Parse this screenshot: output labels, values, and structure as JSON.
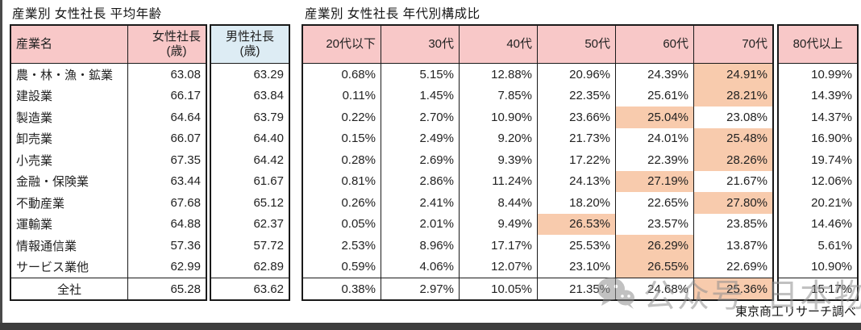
{
  "left_table": {
    "title": "産業別 女性社長 平均年齢",
    "headers": {
      "industry": "産業名",
      "female": "女性社長\n(歳)",
      "male": "男性社長\n(歳)"
    },
    "rows": [
      {
        "industry": "農・林・漁・鉱業",
        "female": "63.08",
        "male": "63.29"
      },
      {
        "industry": "建設業",
        "female": "66.17",
        "male": "63.84"
      },
      {
        "industry": "製造業",
        "female": "64.64",
        "male": "63.79"
      },
      {
        "industry": "卸売業",
        "female": "66.07",
        "male": "64.40"
      },
      {
        "industry": "小売業",
        "female": "67.35",
        "male": "64.42"
      },
      {
        "industry": "金融・保険業",
        "female": "63.44",
        "male": "61.67"
      },
      {
        "industry": "不動産業",
        "female": "67.68",
        "male": "65.12"
      },
      {
        "industry": "運輸業",
        "female": "64.88",
        "male": "62.37"
      },
      {
        "industry": "情報通信業",
        "female": "57.36",
        "male": "57.72"
      },
      {
        "industry": "サービス業他",
        "female": "62.99",
        "male": "62.89"
      }
    ],
    "total": {
      "industry": "全社",
      "female": "65.28",
      "male": "63.62"
    }
  },
  "right_table": {
    "title": "産業別 女性社長 年代別構成比",
    "headers": [
      "20代以下",
      "30代",
      "40代",
      "50代",
      "60代",
      "70代",
      "80代以上"
    ],
    "rows": [
      {
        "values": [
          "0.68%",
          "5.15%",
          "12.88%",
          "20.96%",
          "24.39%",
          "24.91%",
          "10.99%"
        ],
        "highlight": 5
      },
      {
        "values": [
          "0.11%",
          "1.45%",
          "7.85%",
          "22.35%",
          "25.61%",
          "28.21%",
          "14.39%"
        ],
        "highlight": 5
      },
      {
        "values": [
          "0.22%",
          "2.70%",
          "10.90%",
          "23.66%",
          "25.04%",
          "23.08%",
          "14.37%"
        ],
        "highlight": 4
      },
      {
        "values": [
          "0.15%",
          "2.49%",
          "9.20%",
          "21.73%",
          "24.01%",
          "25.48%",
          "16.90%"
        ],
        "highlight": 5
      },
      {
        "values": [
          "0.28%",
          "2.69%",
          "9.39%",
          "17.22%",
          "22.39%",
          "28.26%",
          "19.74%"
        ],
        "highlight": 5
      },
      {
        "values": [
          "0.81%",
          "2.86%",
          "11.24%",
          "24.13%",
          "27.19%",
          "21.67%",
          "12.06%"
        ],
        "highlight": 4
      },
      {
        "values": [
          "0.26%",
          "2.41%",
          "8.44%",
          "18.20%",
          "22.65%",
          "27.80%",
          "20.21%"
        ],
        "highlight": 5
      },
      {
        "values": [
          "0.05%",
          "2.01%",
          "9.49%",
          "26.53%",
          "23.57%",
          "23.85%",
          "14.46%"
        ],
        "highlight": 3
      },
      {
        "values": [
          "2.53%",
          "8.96%",
          "17.17%",
          "25.53%",
          "26.29%",
          "13.87%",
          "5.61%"
        ],
        "highlight": 4
      },
      {
        "values": [
          "0.59%",
          "4.06%",
          "12.07%",
          "23.10%",
          "26.55%",
          "22.69%",
          "10.90%"
        ],
        "highlight": 4
      }
    ],
    "total": {
      "values": [
        "0.38%",
        "2.97%",
        "10.05%",
        "21.35%",
        "24.68%",
        "25.36%",
        "15.17%"
      ],
      "highlight": 5
    }
  },
  "footer": {
    "source": "東京商工リサーチ調べ"
  },
  "watermark": {
    "text": "公众号  日本物语",
    "icon": "wechat-logo"
  },
  "colors": {
    "header_pink": "#f8c8c8",
    "header_blue": "#ddecf4",
    "highlight_orange": "#f8cbad",
    "border": "#1a1a1a",
    "watermark_gray": "#8f8f8f",
    "bottom_bar": "#3d3d3d"
  },
  "chart_data": [
    {
      "type": "table",
      "title": "産業別 女性社長 平均年齢",
      "columns": [
        "産業名",
        "女性社長(歳)",
        "男性社長(歳)"
      ],
      "rows": [
        [
          "農・林・漁・鉱業",
          63.08,
          63.29
        ],
        [
          "建設業",
          66.17,
          63.84
        ],
        [
          "製造業",
          64.64,
          63.79
        ],
        [
          "卸売業",
          66.07,
          64.4
        ],
        [
          "小売業",
          67.35,
          64.42
        ],
        [
          "金融・保険業",
          63.44,
          61.67
        ],
        [
          "不動産業",
          67.68,
          65.12
        ],
        [
          "運輸業",
          64.88,
          62.37
        ],
        [
          "情報通信業",
          57.36,
          57.72
        ],
        [
          "サービス業他",
          62.99,
          62.89
        ],
        [
          "全社",
          65.28,
          63.62
        ]
      ]
    },
    {
      "type": "table",
      "title": "産業別 女性社長 年代別構成比",
      "columns": [
        "20代以下",
        "30代",
        "40代",
        "50代",
        "60代",
        "70代",
        "80代以上"
      ],
      "rows": [
        [
          0.68,
          5.15,
          12.88,
          20.96,
          24.39,
          24.91,
          10.99
        ],
        [
          0.11,
          1.45,
          7.85,
          22.35,
          25.61,
          28.21,
          14.39
        ],
        [
          0.22,
          2.7,
          10.9,
          23.66,
          25.04,
          23.08,
          14.37
        ],
        [
          0.15,
          2.49,
          9.2,
          21.73,
          24.01,
          25.48,
          16.9
        ],
        [
          0.28,
          2.69,
          9.39,
          17.22,
          22.39,
          28.26,
          19.74
        ],
        [
          0.81,
          2.86,
          11.24,
          24.13,
          27.19,
          21.67,
          12.06
        ],
        [
          0.26,
          2.41,
          8.44,
          18.2,
          22.65,
          27.8,
          20.21
        ],
        [
          0.05,
          2.01,
          9.49,
          26.53,
          23.57,
          23.85,
          14.46
        ],
        [
          2.53,
          8.96,
          17.17,
          25.53,
          26.29,
          13.87,
          5.61
        ],
        [
          0.59,
          4.06,
          12.07,
          23.1,
          26.55,
          22.69,
          10.9
        ],
        [
          0.38,
          2.97,
          10.05,
          21.35,
          24.68,
          25.36,
          15.17
        ]
      ],
      "unit": "%",
      "highlighted_max_cell_per_row_column_index": [
        5,
        5,
        4,
        5,
        5,
        4,
        5,
        3,
        4,
        4,
        5
      ]
    }
  ]
}
